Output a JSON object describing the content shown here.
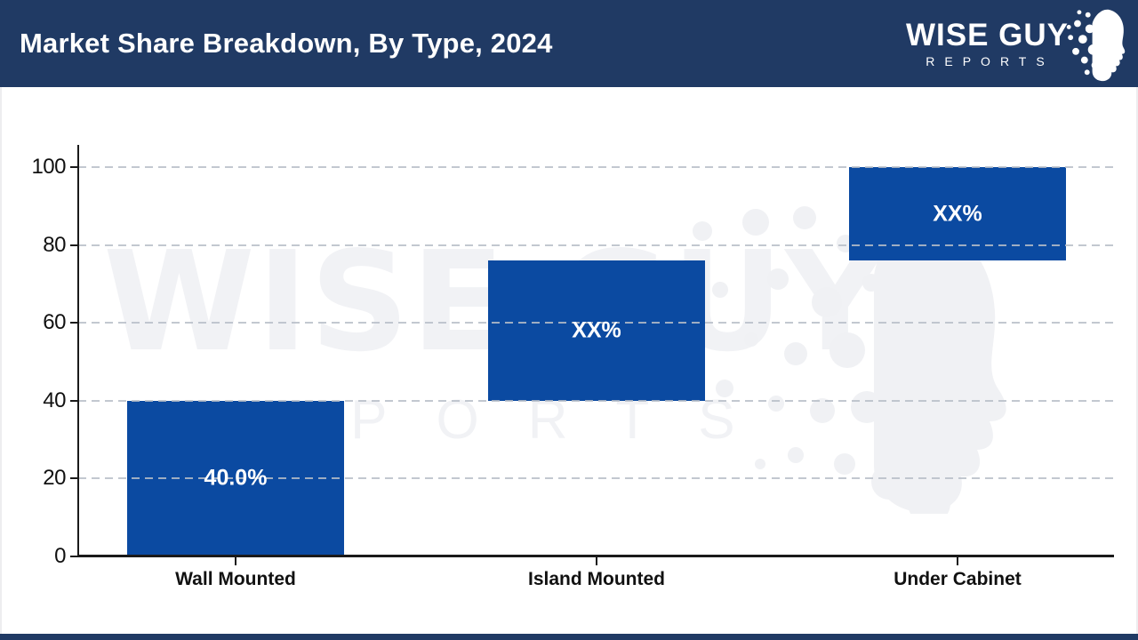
{
  "header": {
    "title": "Market Share Breakdown, By Type, 2024",
    "logo": {
      "wordmark": "WISE GUY",
      "subtext": "REPORTS",
      "face_icon": "face-profile-dots-icon"
    }
  },
  "watermark": {
    "line1": "WISE GUY",
    "line2": "REPORTS",
    "face_icon": "face-profile-dots-watermark"
  },
  "chart_data": {
    "type": "bar",
    "subtype": "floating-waterfall",
    "title": "Market Share Breakdown, By Type, 2024",
    "categories": [
      "Wall Mounted",
      "Island Mounted",
      "Under Cabinet"
    ],
    "segments": [
      {
        "category": "Wall Mounted",
        "start": 0,
        "end": 40,
        "label": "40.0%"
      },
      {
        "category": "Island Mounted",
        "start": 40,
        "end": 76,
        "label": "XX%"
      },
      {
        "category": "Under Cabinet",
        "start": 76,
        "end": 100,
        "label": "XX%"
      }
    ],
    "xlabel": "",
    "ylabel": "",
    "ylim": [
      0,
      100
    ],
    "yticks": [
      0,
      20,
      40,
      60,
      80,
      100
    ],
    "grid": "horizontal-dashed",
    "legend": "none",
    "bar_color": "#0b4aa1",
    "bar_label_color": "#ffffff"
  },
  "colors": {
    "header_bg": "#203a64",
    "footer_bg": "#203a64",
    "title_text": "#ffffff",
    "axis": "#1a1a1a",
    "gridline": "#c3c8d1",
    "watermark": "#f1f2f5",
    "background": "#ffffff"
  }
}
